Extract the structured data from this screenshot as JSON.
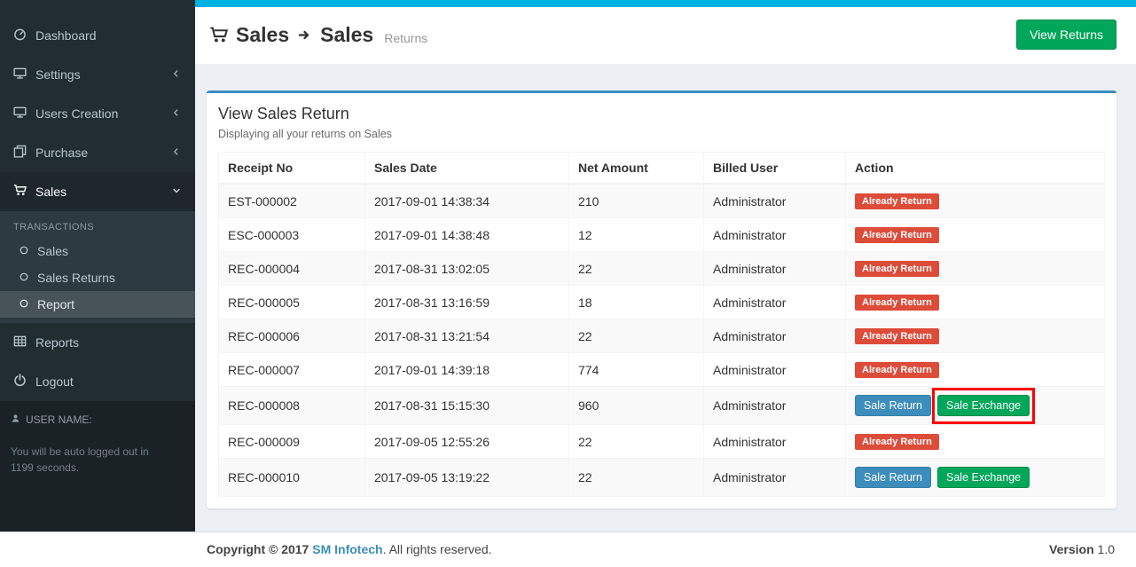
{
  "sidebar": {
    "items": {
      "dashboard": "Dashboard",
      "settings": "Settings",
      "users_creation": "Users Creation",
      "purchase": "Purchase",
      "sales": "Sales"
    },
    "transactions": {
      "header": "TRANSACTIONS",
      "sales": "Sales",
      "sales_returns": "Sales Returns",
      "report": "Report"
    },
    "reports": "Reports",
    "logout": "Logout",
    "user_label": "USER NAME:",
    "auto_logout_line1": "You will be auto logged out in",
    "auto_logout_line2": "1199 seconds."
  },
  "header": {
    "breadcrumb": {
      "primary": "Sales",
      "secondary": "Sales",
      "tertiary": "Returns"
    },
    "view_returns": "View Returns"
  },
  "panel": {
    "title": "View Sales Return",
    "subtitle": "Displaying all your returns on Sales"
  },
  "table": {
    "columns": [
      "Receipt No",
      "Sales Date",
      "Net Amount",
      "Billed User",
      "Action"
    ],
    "rows": [
      {
        "receipt_no": "EST-000002",
        "sales_date": "2017-09-01 14:38:34",
        "net_amount": "210",
        "billed_user": "Administrator",
        "action": "already_return",
        "highlighted": false
      },
      {
        "receipt_no": "ESC-000003",
        "sales_date": "2017-09-01 14:38:48",
        "net_amount": "12",
        "billed_user": "Administrator",
        "action": "already_return",
        "highlighted": false
      },
      {
        "receipt_no": "REC-000004",
        "sales_date": "2017-08-31 13:02:05",
        "net_amount": "22",
        "billed_user": "Administrator",
        "action": "already_return",
        "highlighted": false
      },
      {
        "receipt_no": "REC-000005",
        "sales_date": "2017-08-31 13:16:59",
        "net_amount": "18",
        "billed_user": "Administrator",
        "action": "already_return",
        "highlighted": false
      },
      {
        "receipt_no": "REC-000006",
        "sales_date": "2017-08-31 13:21:54",
        "net_amount": "22",
        "billed_user": "Administrator",
        "action": "already_return",
        "highlighted": false
      },
      {
        "receipt_no": "REC-000007",
        "sales_date": "2017-09-01 14:39:18",
        "net_amount": "774",
        "billed_user": "Administrator",
        "action": "already_return",
        "highlighted": false
      },
      {
        "receipt_no": "REC-000008",
        "sales_date": "2017-08-31 15:15:30",
        "net_amount": "960",
        "billed_user": "Administrator",
        "action": "return_and_exchange",
        "highlighted": true
      },
      {
        "receipt_no": "REC-000009",
        "sales_date": "2017-09-05 12:55:26",
        "net_amount": "22",
        "billed_user": "Administrator",
        "action": "already_return",
        "highlighted": false
      },
      {
        "receipt_no": "REC-000010",
        "sales_date": "2017-09-05 13:19:22",
        "net_amount": "22",
        "billed_user": "Administrator",
        "action": "return_and_exchange",
        "highlighted": false
      }
    ]
  },
  "action_labels": {
    "already_return": "Already Return",
    "sale_return": "Sale Return",
    "sale_exchange": "Sale Exchange"
  },
  "footer": {
    "copyright_prefix": "Copyright © 2017",
    "company": "SM Infotech",
    "copyright_suffix": ". All rights reserved.",
    "version_label": "Version",
    "version_value": "1.0"
  },
  "colors": {
    "sidebar_bg": "#222d32",
    "sidebar_active_bg": "#1e282c",
    "submenu_bg": "#2c3b41",
    "accent_bar": "#00b2e2",
    "panel_border": "#3c8dbc",
    "danger": "#dd4b39",
    "primary": "#3c8dbc",
    "success": "#00a65a",
    "annotation": "#ff0000"
  }
}
